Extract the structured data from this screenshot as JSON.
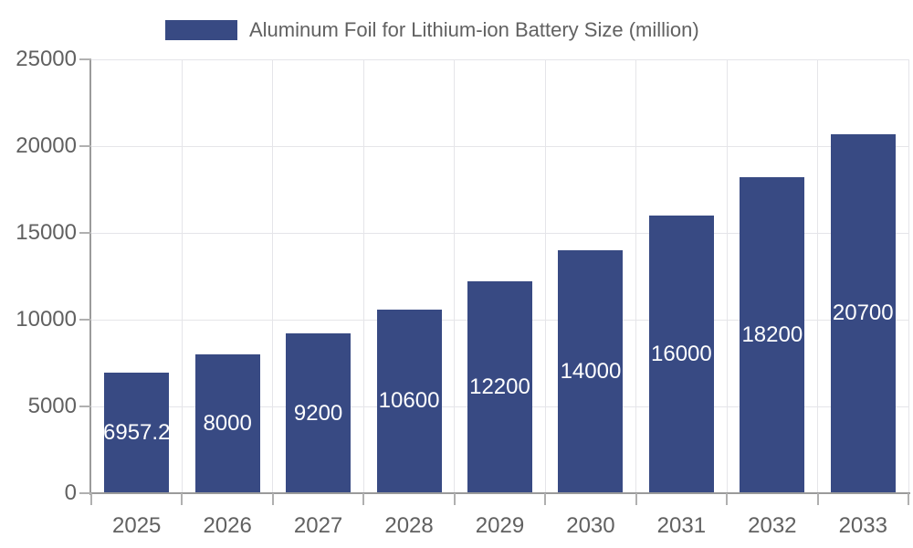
{
  "legend": {
    "label": "Aluminum Foil for Lithium-ion Battery Size (million)"
  },
  "chart_data": {
    "type": "bar",
    "title": "Aluminum Foil for Lithium-ion Battery Size (million)",
    "categories": [
      "2025",
      "2026",
      "2027",
      "2028",
      "2029",
      "2030",
      "2031",
      "2032",
      "2033"
    ],
    "values": [
      6957.2,
      8000,
      9200,
      10600,
      12200,
      14000,
      16000,
      18200,
      20700
    ],
    "bar_labels": [
      "6957.2",
      "8000",
      "9200",
      "10600",
      "12200",
      "14000",
      "16000",
      "18200",
      "20700"
    ],
    "xlabel": "",
    "ylabel": "",
    "ylim": [
      0,
      25000
    ],
    "yticks": [
      0,
      5000,
      10000,
      15000,
      20000,
      25000
    ],
    "ytick_labels": [
      "0",
      "5000",
      "10000",
      "15000",
      "20000",
      "25000"
    ],
    "grid": true,
    "legend_position": "top",
    "colors": {
      "bar": "#384A83",
      "tick_text": "#616161",
      "legend_text": "#616161",
      "axis_line": "#9a9a9a",
      "tick_mark": "#b0b0b0",
      "grid_line": "#e5e5e9",
      "bar_label_text": "#ffffff",
      "background": "#ffffff"
    }
  }
}
